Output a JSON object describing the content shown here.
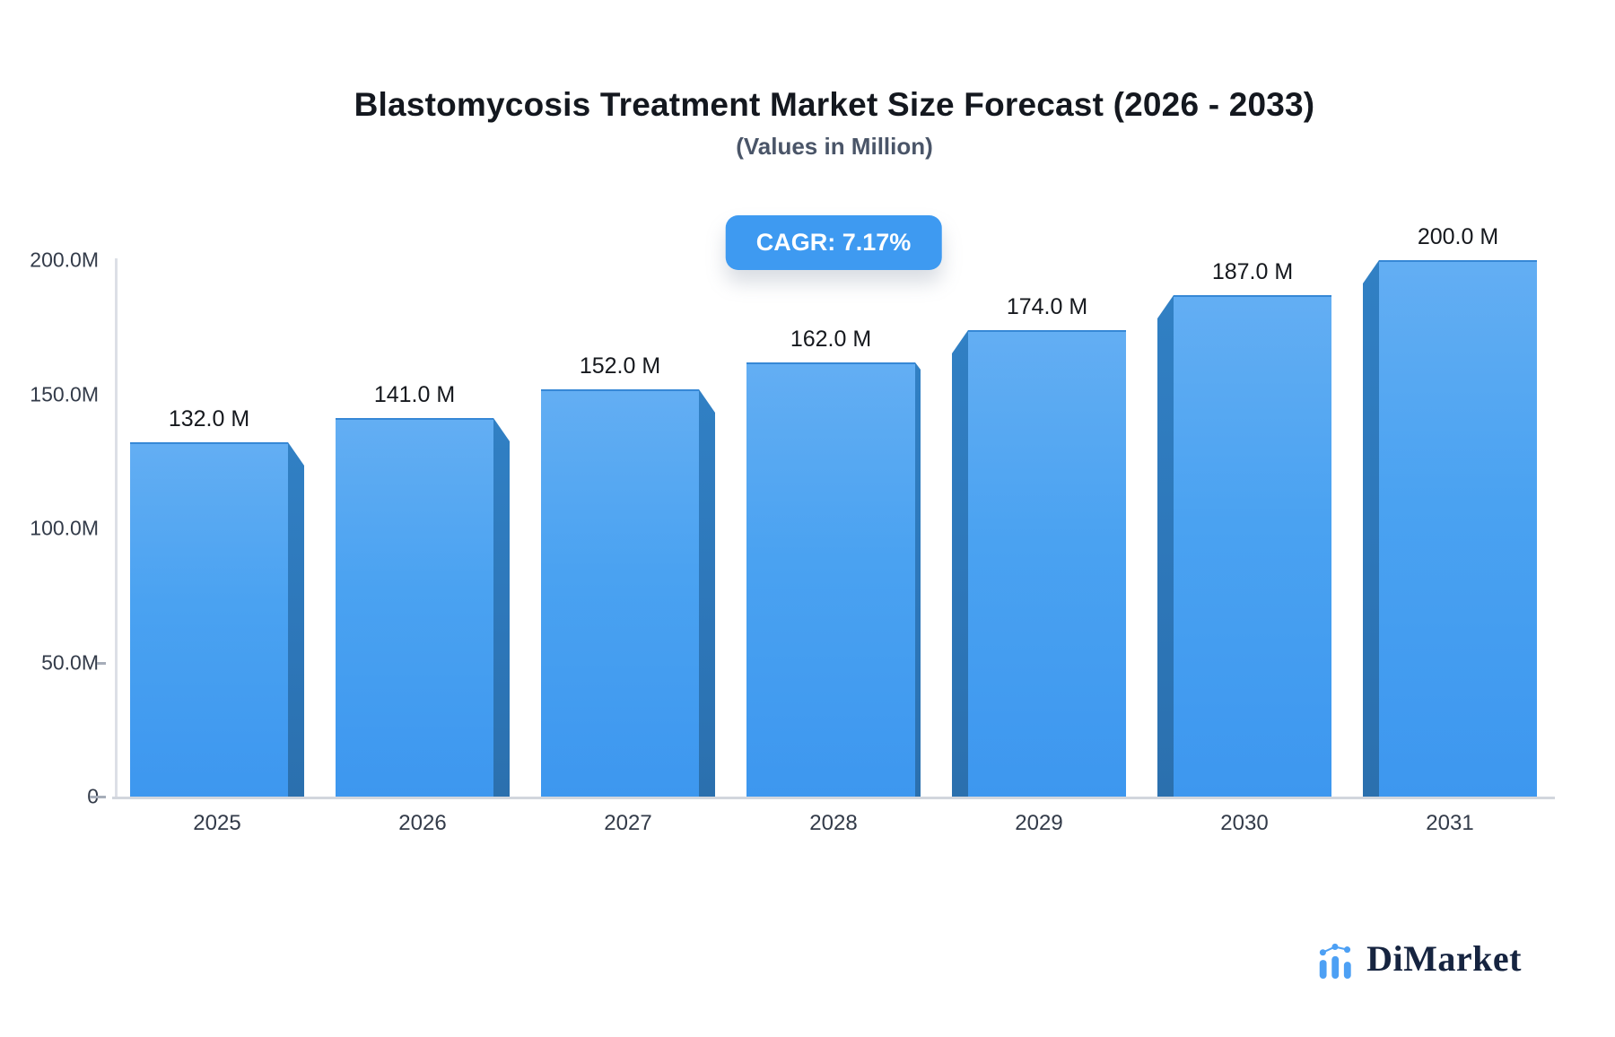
{
  "title": "Blastomycosis Treatment Market Size Forecast (2026 - 2033)",
  "subtitle": "(Values in Million)",
  "badge": {
    "label": "CAGR: 7.17%"
  },
  "logo": {
    "text": "DiMarket"
  },
  "colors": {
    "bar_front_top": "#63aef3",
    "bar_front_bottom": "#3d97ef",
    "bar_side": "#2d76b8",
    "badge_bg": "#3e9af1",
    "title_text": "#14181f",
    "subtitle_text": "#4a5568",
    "axis_line": "#dcdfe6",
    "logo_text": "#162440",
    "logo_icon_blue": "#4da0f4"
  },
  "chart_data": {
    "type": "bar",
    "title": "Blastomycosis Treatment Market Size Forecast (2026 - 2033)",
    "subtitle": "(Values in Million)",
    "cagr": "7.17%",
    "categories": [
      "2025",
      "2026",
      "2027",
      "2028",
      "2029",
      "2030",
      "2031"
    ],
    "values": [
      132,
      141,
      152,
      162,
      174,
      187,
      200
    ],
    "value_labels": [
      "132.0 M",
      "141.0 M",
      "152.0 M",
      "162.0 M",
      "174.0 M",
      "187.0 M",
      "200.0 M"
    ],
    "xlabel": "",
    "ylabel": "",
    "unit": "Million",
    "ylim": [
      0,
      200
    ],
    "grid": false,
    "legend": null,
    "y_ticks": [
      {
        "label": "200.0M",
        "value": 200
      },
      {
        "label": "150.0M",
        "value": 150
      },
      {
        "label": "100.0M",
        "value": 100
      },
      {
        "label": "50.0M",
        "value": 50
      },
      {
        "label": "0",
        "value": 0
      }
    ]
  }
}
